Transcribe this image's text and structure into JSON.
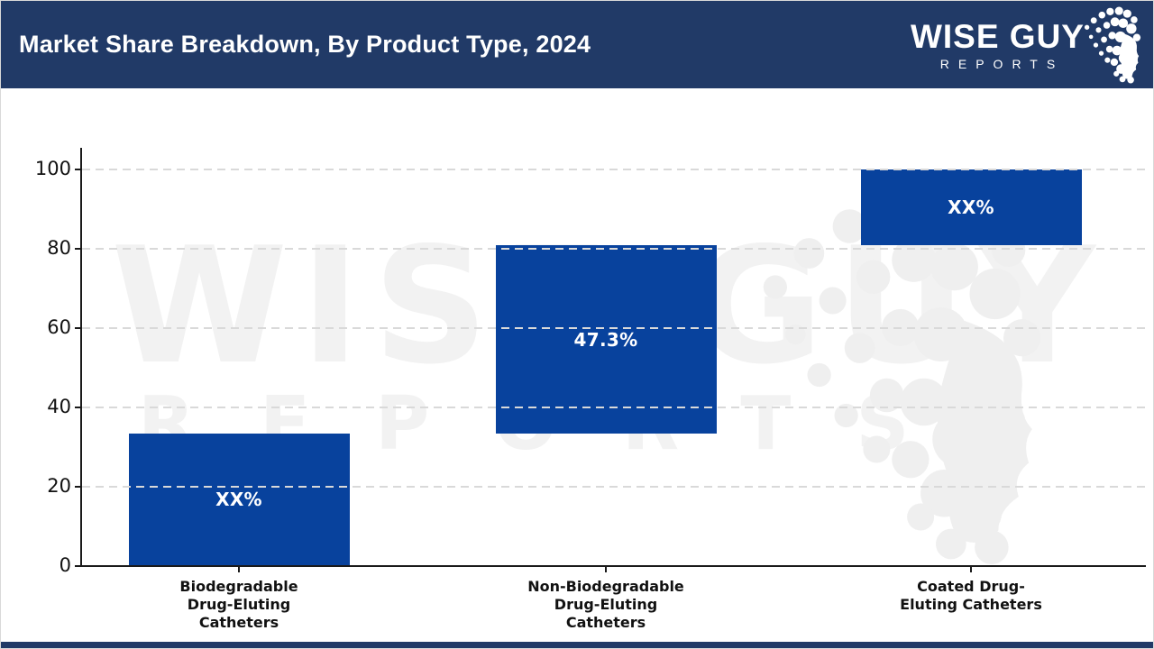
{
  "header": {
    "title": "Market Share Breakdown, By Product Type, 2024",
    "bg_color": "#213a67",
    "logo": {
      "line1": "WISE GUY",
      "line2": "REPORTS"
    }
  },
  "watermark": {
    "line1": "WISE GUY",
    "line2": "REPORTS"
  },
  "footer": {
    "bar_color": "#213a67"
  },
  "chart_data": {
    "type": "bar",
    "subtype": "waterfall-segments",
    "title": "Market Share Breakdown, By Product Type, 2024",
    "categories": [
      "Biodegradable\nDrug-Eluting\nCatheters",
      "Non-Biodegradable\nDrug-Eluting\nCatheters",
      "Coated Drug-\nEluting Catheters"
    ],
    "segments": [
      {
        "start": 0,
        "end": 33.5,
        "value": 33.5,
        "label": "XX%"
      },
      {
        "start": 33.5,
        "end": 80.8,
        "value": 47.3,
        "label": "47.3%"
      },
      {
        "start": 80.8,
        "end": 100,
        "value": 19.2,
        "label": "XX%"
      }
    ],
    "xlabel": "",
    "ylabel": "",
    "ylim": [
      0,
      100
    ],
    "yticks": [
      0,
      20,
      40,
      60,
      80,
      100
    ],
    "grid": "horizontal-dashed-over-bars",
    "legend": "none",
    "bar_color": "#08429d",
    "bar_label_color": "#ffffff",
    "grid_color": "#d9d9d9",
    "axis_color": "#1a1a1a"
  }
}
